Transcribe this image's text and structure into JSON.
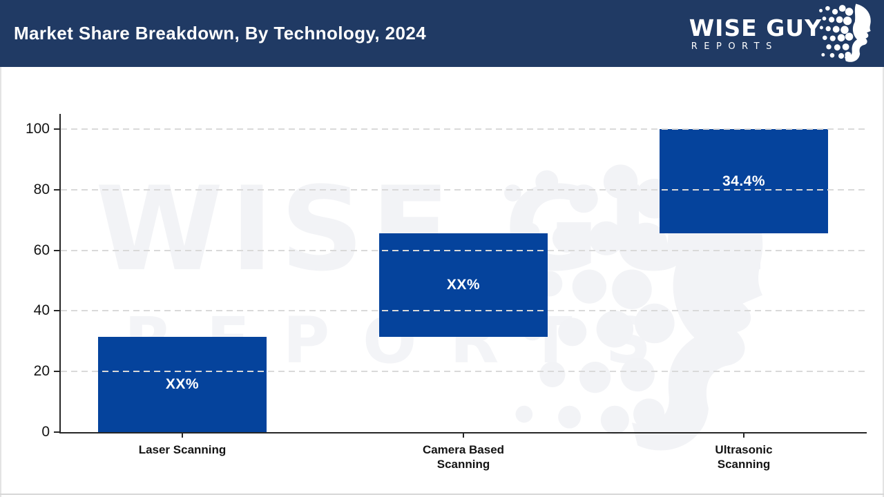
{
  "header": {
    "title": "Market Share Breakdown, By Technology, 2024",
    "bg_color": "#203a64",
    "logo": {
      "line1": "WISE GUY",
      "line2": "REPORTS"
    }
  },
  "watermark": {
    "line1": "WISE GUY",
    "line2": "REPORTS"
  },
  "chart_data": {
    "type": "bar",
    "subtype": "floating-waterfall",
    "title": "Market Share Breakdown, By Technology, 2024",
    "unit": "%",
    "categories": [
      "Laser Scanning",
      "Camera Based\nScanning",
      "Ultrasonic\nScanning"
    ],
    "segments": [
      {
        "category": "Laser Scanning",
        "start": 0,
        "end": 31.4,
        "value": 31.4,
        "label": "XX%"
      },
      {
        "category": "Camera Based\nScanning",
        "start": 31.4,
        "end": 65.6,
        "value": 34.2,
        "label": "XX%"
      },
      {
        "category": "Ultrasonic\nScanning",
        "start": 65.6,
        "end": 100,
        "value": 34.4,
        "label": "34.4%"
      }
    ],
    "yticks": [
      0,
      20,
      40,
      60,
      80,
      100
    ],
    "ylim": [
      0,
      105
    ],
    "grid": "horizontal-dashed",
    "legend": "none",
    "bar_color": "#05439c",
    "bar_label_color": "#ffffff",
    "axis_color": "#262626",
    "grid_color": "#d9d9d9",
    "tick_label_color": "#141414"
  }
}
